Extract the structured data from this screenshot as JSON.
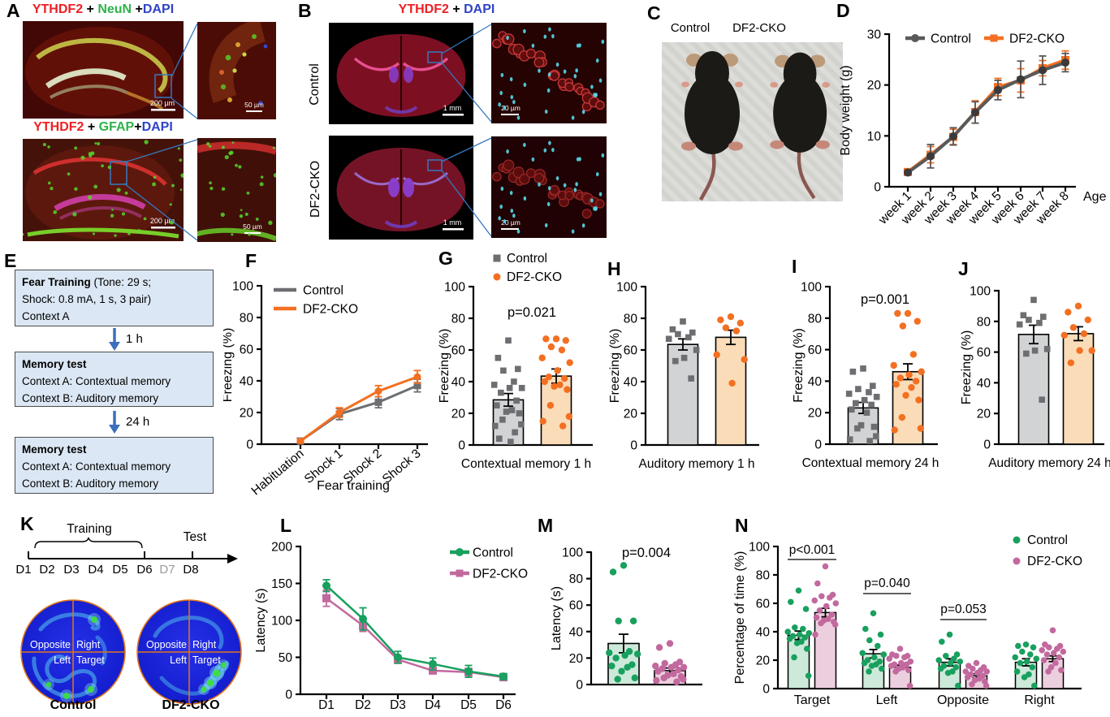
{
  "colors": {
    "orange": "#f36f21",
    "gray": "#6d6e71",
    "dark_gray": "#58595b",
    "green": "#18a05e",
    "pink": "#c2699e",
    "bar_gray": "#d1d3d4",
    "bar_orange": "#fbdcb8",
    "bar_green": "#cde9d9",
    "bar_pink": "#eccfde",
    "flow_box": "#dbe7f4",
    "arrow_blue": "#3b6fbe",
    "connector_blue": "#3579c1"
  },
  "panels": {
    "A": {
      "label": "A",
      "title_neun": {
        "a": "YTHDF2",
        "b": " + ",
        "c": "NeuN",
        "d": " +",
        "e": "DAPI"
      },
      "title_gfap": {
        "a": "YTHDF2",
        "b": " + ",
        "c": "GFAP",
        "d": "+",
        "e": "DAPI"
      },
      "scalebar_main": "200 µm",
      "scalebar_inset": "50 µm"
    },
    "B": {
      "label": "B",
      "title": {
        "a": "YTHDF2",
        "b": " + ",
        "c": "DAPI"
      },
      "row1": "Control",
      "row2": "DF2-CKO",
      "scalebar_main": "1 mm",
      "scalebar_inset": "20 µm"
    },
    "C": {
      "label": "C",
      "left": "Control",
      "right": "DF2-CKO"
    },
    "D": {
      "label": "D"
    },
    "E": {
      "label": "E",
      "box1_bold": "Fear Training",
      "box1_rest": " (Tone: 29 s;",
      "box1_line2": "Shock: 0.8 mA, 1 s, 3 pair)",
      "box1_line3": "Context A",
      "arrow1": "1 h",
      "box2_bold": "Memory test",
      "box2_line2": "Context A: Contextual memory",
      "box2_line3": "Context B: Auditory memory",
      "arrow2": "24 h",
      "box3_bold": "Memory test",
      "box3_line2": "Context A: Contextual memory",
      "box3_line3": "Context B: Auditory memory"
    },
    "F": {
      "label": "F"
    },
    "G": {
      "label": "G"
    },
    "H": {
      "label": "H"
    },
    "I": {
      "label": "I"
    },
    "J": {
      "label": "J"
    },
    "K": {
      "label": "K",
      "training": "Training",
      "test": "Test",
      "days": [
        "D1",
        "D2",
        "D3",
        "D4",
        "D5",
        "D6",
        "D7",
        "D8"
      ],
      "quadrants": {
        "tl": "Opposite",
        "tr": "Right",
        "bl": "Left",
        "br": "Target"
      },
      "maze1": "Control",
      "maze2": "DF2-CKO"
    },
    "L": {
      "label": "L"
    },
    "M": {
      "label": "M"
    },
    "N": {
      "label": "N"
    }
  },
  "chart_data": {
    "D": {
      "type": "line",
      "ylabel": "Body weight (g)",
      "ylim": [
        0,
        30
      ],
      "yticks": [
        0,
        10,
        20,
        30
      ],
      "categories": [
        "week 1",
        "week 2",
        "week 3",
        "week 4",
        "week 5",
        "week 6",
        "week 7",
        "week 8"
      ],
      "x_axis_extra": "Age",
      "series": [
        {
          "name": "DF2-CKO",
          "color": "#f36f21",
          "marker": "square",
          "values": [
            2.9,
            6.3,
            9.8,
            14.7,
            19.6,
            20.9,
            23.3,
            24.9
          ],
          "errors": [
            0.4,
            1.6,
            1.5,
            2.2,
            1.7,
            2.3,
            1.5,
            1.8
          ]
        },
        {
          "name": "Control",
          "color": "#58595b",
          "marker": "circle",
          "values": [
            2.8,
            6.0,
            9.9,
            14.6,
            19.0,
            21.1,
            22.9,
            24.4
          ],
          "errors": [
            0.4,
            2.3,
            1.7,
            2.1,
            1.9,
            3.6,
            2.8,
            1.8
          ]
        }
      ],
      "legend": [
        {
          "label": "Control",
          "color": "#58595b",
          "marker": "circle"
        },
        {
          "label": "DF2-CKO",
          "color": "#f36f21",
          "marker": "square"
        }
      ]
    },
    "F": {
      "type": "line",
      "ylabel": "Freezing (%)",
      "xlabel": "Fear training",
      "ylim": [
        0,
        100
      ],
      "yticks": [
        0,
        20,
        40,
        60,
        80,
        100
      ],
      "categories": [
        "Habituation",
        "Shock 1",
        "Shock 2",
        "Shock 3"
      ],
      "series": [
        {
          "name": "Control",
          "color": "#6d6e71",
          "marker": "square",
          "values": [
            2,
            19,
            26.5,
            37
          ],
          "errors": [
            1,
            3.5,
            3.5,
            4
          ]
        },
        {
          "name": "DF2-CKO",
          "color": "#f36f21",
          "marker": "circle",
          "values": [
            2,
            20,
            33.5,
            42.5
          ],
          "errors": [
            1,
            3,
            3.5,
            4
          ]
        }
      ],
      "legend": [
        {
          "label": "Control",
          "color": "#6d6e71"
        },
        {
          "label": "DF2-CKO",
          "color": "#f36f21"
        }
      ]
    },
    "G": {
      "type": "bars",
      "ylabel": "Freezing (%)",
      "xlabel": "Contextual memory 1 h",
      "p": "p=0.021",
      "ylim": [
        0,
        100
      ],
      "yticks": [
        0,
        20,
        40,
        60,
        80,
        100
      ],
      "bars": [
        {
          "name": "Control",
          "value": 28.5,
          "err": 4,
          "fill": "#d1d3d4",
          "marker": "square",
          "point_color": "#6d6e71",
          "points": [
            66,
            55,
            48,
            47,
            40,
            38,
            36,
            36,
            33,
            28,
            25,
            22,
            21,
            20,
            16,
            13,
            12,
            8,
            4,
            2
          ]
        },
        {
          "name": "DF2-CKO",
          "value": 43.5,
          "err": 4.5,
          "fill": "#fbdcb8",
          "marker": "circle",
          "point_color": "#f36f21",
          "points": [
            67,
            67,
            66,
            62,
            60,
            55,
            52,
            47,
            43,
            42,
            40,
            38,
            37,
            35,
            25,
            18,
            15,
            12
          ]
        }
      ],
      "legend": [
        {
          "label": "Control",
          "color": "#6d6e71",
          "marker": "square"
        },
        {
          "label": "DF2-CKO",
          "color": "#f36f21",
          "marker": "circle"
        }
      ]
    },
    "H": {
      "type": "bars",
      "ylabel": "Freezing (%)",
      "xlabel": "Auditory memory 1 h",
      "ylim": [
        0,
        100
      ],
      "yticks": [
        0,
        20,
        40,
        60,
        80,
        100
      ],
      "bars": [
        {
          "name": "Control",
          "value": 63.5,
          "err": 3.5,
          "fill": "#d1d3d4",
          "marker": "square",
          "point_color": "#6d6e71",
          "points": [
            78,
            73,
            71,
            70,
            68,
            67,
            60,
            55,
            53,
            42
          ]
        },
        {
          "name": "DF2-CKO",
          "value": 68,
          "err": 4.5,
          "fill": "#fbdcb8",
          "marker": "circle",
          "point_color": "#f36f21",
          "points": [
            81,
            79,
            77,
            74,
            72,
            57,
            54,
            39
          ]
        }
      ]
    },
    "I": {
      "type": "bars",
      "ylabel": "Freezing (%)",
      "xlabel": "Contextual memory 24 h",
      "p": "p=0.001",
      "ylim": [
        0,
        100
      ],
      "yticks": [
        0,
        20,
        40,
        60,
        80,
        100
      ],
      "bars": [
        {
          "name": "Control",
          "value": 23,
          "err": 3.5,
          "fill": "#d1d3d4",
          "marker": "square",
          "point_color": "#6d6e71",
          "points": [
            48,
            46,
            37,
            35,
            33,
            32,
            30,
            28,
            26,
            25,
            22,
            20,
            12,
            11,
            10,
            5,
            3,
            2
          ]
        },
        {
          "name": "DF2-CKO",
          "value": 46,
          "err": 5,
          "fill": "#fbdcb8",
          "marker": "circle",
          "point_color": "#f36f21",
          "points": [
            83,
            83,
            78,
            75,
            57,
            50,
            46,
            44,
            42,
            40,
            38,
            36,
            31,
            28,
            17,
            10,
            9
          ]
        }
      ]
    },
    "J": {
      "type": "bars",
      "ylabel": "Freezing (%)",
      "xlabel": "Auditory memory 24 h",
      "ylim": [
        0,
        100
      ],
      "yticks": [
        0,
        20,
        40,
        60,
        80,
        100
      ],
      "bars": [
        {
          "name": "Control",
          "value": 71.5,
          "err": 6,
          "fill": "#d1d3d4",
          "marker": "square",
          "point_color": "#6d6e71",
          "points": [
            94,
            84,
            83,
            81,
            79,
            78,
            62,
            61,
            59,
            29
          ]
        },
        {
          "name": "DF2-CKO",
          "value": 72,
          "err": 4.5,
          "fill": "#fbdcb8",
          "marker": "circle",
          "point_color": "#f36f21",
          "points": [
            90,
            86,
            81,
            76,
            72,
            71,
            61,
            61,
            53
          ]
        }
      ]
    },
    "L": {
      "type": "line",
      "ylabel": "Latency (s)",
      "ylim": [
        0,
        200
      ],
      "yticks": [
        0,
        50,
        100,
        150,
        200
      ],
      "categories": [
        "D1",
        "D2",
        "D3",
        "D4",
        "D5",
        "D6"
      ],
      "series": [
        {
          "name": "DF2-CKO",
          "color": "#c2699e",
          "marker": "square",
          "values": [
            130,
            93,
            47,
            32,
            30,
            23
          ],
          "errors": [
            11,
            8,
            5,
            4,
            5,
            4
          ]
        },
        {
          "name": "Control",
          "color": "#18a05e",
          "marker": "circle",
          "values": [
            147,
            102,
            50,
            41,
            31,
            24
          ],
          "errors": [
            8,
            15,
            8,
            8,
            8,
            4
          ]
        }
      ],
      "legend": [
        {
          "label": "Control",
          "color": "#18a05e",
          "marker": "circle"
        },
        {
          "label": "DF2-CKO",
          "color": "#c2699e",
          "marker": "square"
        }
      ]
    },
    "M": {
      "type": "bars",
      "ylabel": "Latency (s)",
      "p": "p=0.004",
      "ylim": [
        0,
        100
      ],
      "yticks": [
        0,
        20,
        40,
        60,
        80,
        100
      ],
      "bars": [
        {
          "name": "Control",
          "value": 31,
          "err": 7,
          "fill": "#cde9d9",
          "marker": "circle",
          "point_color": "#18a05e",
          "points": [
            90,
            85,
            48,
            48,
            25,
            24,
            23,
            22,
            20,
            15,
            14,
            13,
            10,
            5,
            4
          ]
        },
        {
          "name": "DF2-CKO",
          "value": 10.5,
          "err": 2,
          "fill": "#eccfde",
          "marker": "circle",
          "point_color": "#c2699e",
          "points": [
            31,
            28,
            17,
            16,
            15,
            14,
            13,
            13,
            12,
            11,
            10,
            8,
            7,
            6,
            5,
            4,
            3,
            2
          ]
        }
      ]
    },
    "N": {
      "type": "gbars",
      "ylabel": "Percentage of time (%)",
      "ylim": [
        0,
        100
      ],
      "yticks": [
        0,
        20,
        40,
        60,
        80,
        100
      ],
      "categories": [
        "Target",
        "Left",
        "Opposite",
        "Right"
      ],
      "series": [
        {
          "name": "Control",
          "fill": "#cde9d9",
          "point_color": "#18a05e",
          "values": [
            37.5,
            24.5,
            18.5,
            18.5
          ],
          "errors": [
            3,
            3,
            2.5,
            2.5
          ],
          "points": [
            [
              69,
              61,
              56,
              43,
              42,
              40,
              39,
              38,
              37,
              36,
              35,
              33,
              32,
              28,
              22,
              9
            ],
            [
              53,
              42,
              38,
              34,
              30,
              25,
              24,
              22,
              20,
              19,
              18,
              17,
              16,
              14,
              12
            ],
            [
              38,
              33,
              24,
              23,
              21,
              20,
              19,
              18,
              16,
              15,
              14,
              12,
              11,
              2
            ],
            [
              31,
              30,
              29,
              26,
              24,
              22,
              21,
              19,
              18,
              15,
              12,
              10,
              8,
              2
            ]
          ]
        },
        {
          "name": "DF2-CKO",
          "fill": "#eccfde",
          "point_color": "#c2699e",
          "values": [
            53.5,
            15,
            9,
            21
          ],
          "errors": [
            3,
            1.5,
            1.5,
            2
          ],
          "points": [
            [
              86,
              74,
              66,
              65,
              64,
              62,
              60,
              58,
              55,
              52,
              50,
              49,
              48,
              47,
              46,
              45,
              38
            ],
            [
              28,
              24,
              23,
              23,
              22,
              21,
              19,
              18,
              17,
              17,
              16,
              15,
              14,
              13,
              12,
              2
            ],
            [
              18,
              16,
              15,
              14,
              13,
              12,
              12,
              11,
              10,
              9,
              8,
              7,
              6,
              5,
              3,
              2
            ],
            [
              41,
              31,
              30,
              29,
              28,
              27,
              26,
              25,
              24,
              22,
              20,
              18,
              15,
              13,
              12
            ]
          ]
        }
      ],
      "p_labels": [
        {
          "index": 0,
          "text": "p<0.001"
        },
        {
          "index": 1,
          "text": "p=0.040"
        },
        {
          "index": 2,
          "text": "p=0.053"
        }
      ],
      "legend": [
        {
          "label": "Control",
          "color": "#18a05e",
          "marker": "circle"
        },
        {
          "label": "DF2-CKO",
          "color": "#c2699e",
          "marker": "circle"
        }
      ]
    }
  }
}
